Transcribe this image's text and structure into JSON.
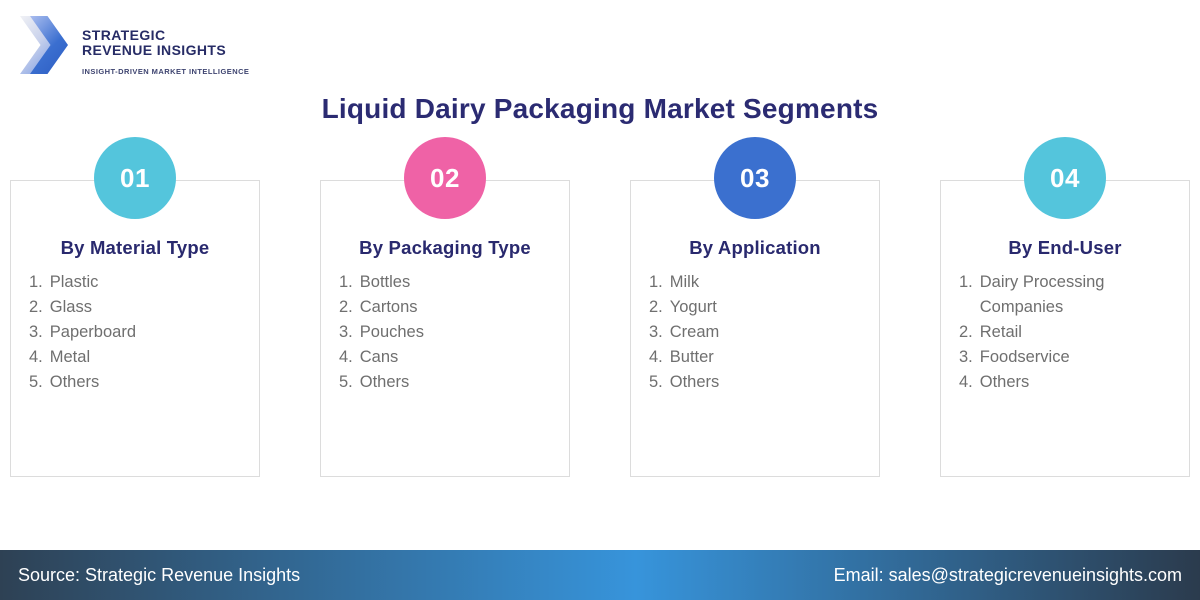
{
  "logo": {
    "line1": "STRATEGIC",
    "line2": "REVENUE INSIGHTS",
    "tagline": "INSIGHT-DRIVEN MARKET INTELLIGENCE"
  },
  "title": "Liquid Dairy Packaging Market Segments",
  "segments": [
    {
      "number": "01",
      "badge_color": "#54C5DC",
      "heading": "By Material Type",
      "items": [
        "Plastic",
        "Glass",
        "Paperboard",
        "Metal",
        "Others"
      ]
    },
    {
      "number": "02",
      "badge_color": "#EF62A6",
      "heading": "By Packaging Type",
      "items": [
        "Bottles",
        "Cartons",
        "Pouches",
        "Cans",
        "Others"
      ]
    },
    {
      "number": "03",
      "badge_color": "#3B70CF",
      "heading": "By Application",
      "items": [
        "Milk",
        "Yogurt",
        "Cream",
        "Butter",
        "Others"
      ]
    },
    {
      "number": "04",
      "badge_color": "#54C5DC",
      "heading": "By End-User",
      "items": [
        "Dairy Processing Companies",
        "Retail",
        "Foodservice",
        "Others"
      ]
    }
  ],
  "footer": {
    "source": "Source: Strategic Revenue Insights",
    "email": "Email: sales@strategicrevenueinsights.com"
  },
  "colors": {
    "title_navy": "#2B2B72",
    "heading_navy": "#29296E",
    "list_gray": "#6F6F6F",
    "card_border": "#DCDCDC",
    "footer_dark_left": "#2E4154",
    "footer_blue_mid": "#3794DB",
    "footer_dark_right": "#2B3B4D",
    "teal": "#54C5DC",
    "pink": "#EF62A6",
    "blue": "#3B70CF"
  }
}
